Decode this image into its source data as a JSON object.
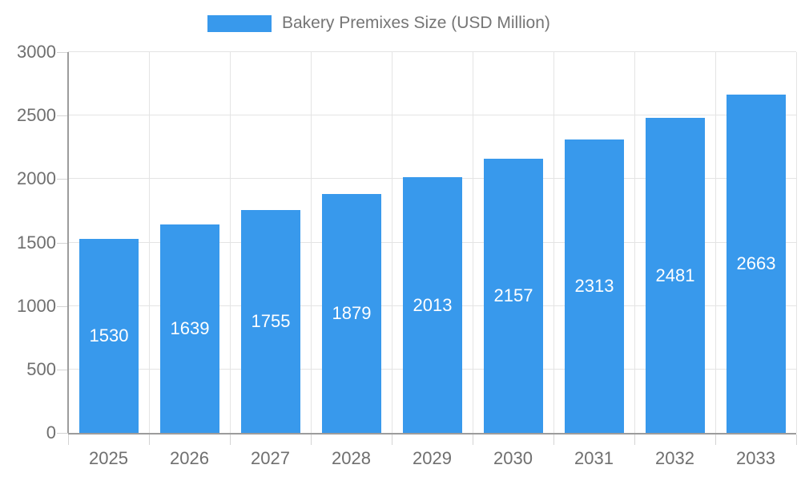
{
  "chart_data": {
    "type": "bar",
    "title": "Bakery Premixes Size (USD Million)",
    "legend": {
      "label": "Bakery Premixes Size (USD Million)",
      "position": "top-center"
    },
    "categories": [
      "2025",
      "2026",
      "2027",
      "2028",
      "2029",
      "2030",
      "2031",
      "2032",
      "2033"
    ],
    "series": [
      {
        "name": "Bakery Premixes Size (USD Million)",
        "values": [
          1530,
          1639,
          1755,
          1879,
          2013,
          2157,
          2313,
          2481,
          2663
        ]
      }
    ],
    "xlabel": "",
    "ylabel": "",
    "ylim": [
      0,
      3000
    ],
    "yticks": [
      0,
      500,
      1000,
      1500,
      2000,
      2500,
      3000
    ],
    "grid": true,
    "value_labels": "centered-inside-bars-white",
    "colors": {
      "bar": "#3899ec",
      "value_text": "#ffffff",
      "axis_text": "#6f6f6f",
      "legend_text": "#757575",
      "axis_line": "#9c9c9c",
      "grid_line": "#e4e4e4",
      "tick_line": "#d4d4d4",
      "background": "#ffffff"
    }
  }
}
